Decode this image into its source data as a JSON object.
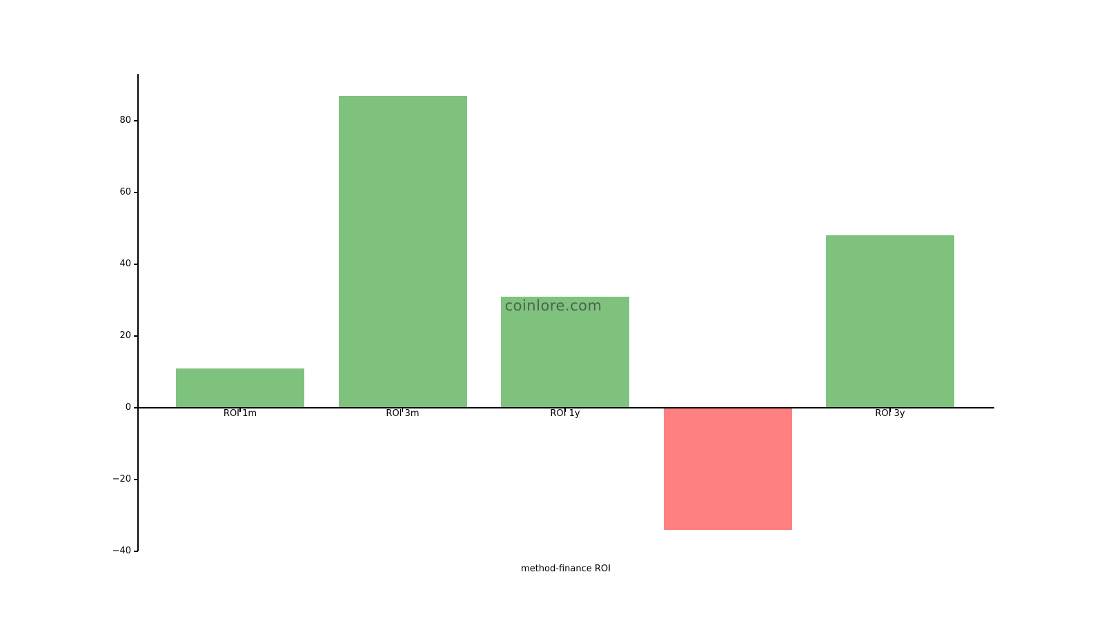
{
  "chart_data": {
    "type": "bar",
    "title": "",
    "xlabel": "method-finance ROI",
    "ylabel": "",
    "categories": [
      "ROI 1m",
      "ROI 3m",
      "ROI 1y",
      "",
      "ROI 3y"
    ],
    "values": [
      11,
      87,
      31,
      -34,
      48
    ],
    "positive_color": "#7ec27e",
    "negative_color": "#ff8080",
    "axis_color": "#000000",
    "text_color": "#000000",
    "ylim": [
      -40,
      93
    ],
    "yticks": [
      {
        "label": "80",
        "value": 80
      },
      {
        "label": "60",
        "value": 60
      },
      {
        "label": "40",
        "value": 40
      },
      {
        "label": "20",
        "value": 20
      },
      {
        "label": "0",
        "value": 0
      },
      {
        "label": "−20",
        "value": -20
      },
      {
        "label": "−40",
        "value": -40
      }
    ],
    "grid": false,
    "legend": false,
    "watermark": {
      "text": "coinlore.com",
      "color": "rgba(60,60,60,0.72)"
    }
  }
}
